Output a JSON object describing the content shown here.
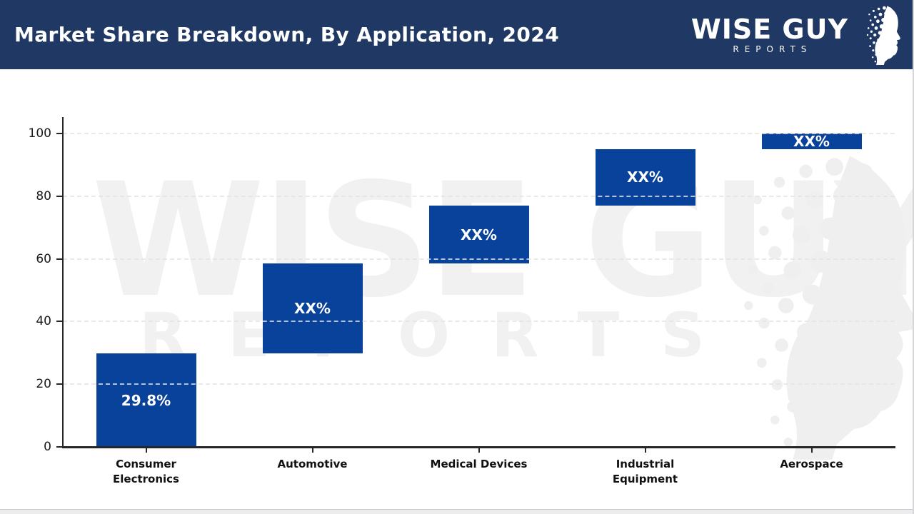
{
  "header": {
    "title": "Market Share Breakdown, By Application, 2024",
    "bg_color": "#1f3864",
    "logo": {
      "name": "WISE GUY",
      "tagline": "REPORTS"
    }
  },
  "watermark": {
    "name": "WISE GUY",
    "tagline": "REPORTS"
  },
  "chart_data": {
    "type": "bar",
    "subtype": "waterfall",
    "title": "Market Share Breakdown, By Application, 2024",
    "categories": [
      "Consumer Electronics",
      "Automotive",
      "Medical Devices",
      "Industrial Equipment",
      "Aerospace"
    ],
    "series": [
      {
        "name": "Market share (%)",
        "segments": [
          {
            "category": "Consumer Electronics",
            "start": 0,
            "end": 29.8,
            "label": "29.8%"
          },
          {
            "category": "Automotive",
            "start": 29.8,
            "end": 58.5,
            "label": "XX%"
          },
          {
            "category": "Medical Devices",
            "start": 58.5,
            "end": 77,
            "label": "XX%"
          },
          {
            "category": "Industrial Equipment",
            "start": 77,
            "end": 95,
            "label": "XX%"
          },
          {
            "category": "Aerospace",
            "start": 95,
            "end": 100,
            "label": "XX%"
          }
        ]
      }
    ],
    "cumulative_totals": [
      29.8,
      58.5,
      77,
      95,
      100
    ],
    "xlabel": "",
    "ylabel": "",
    "ylim": [
      0,
      100
    ],
    "yticks": [
      0,
      20,
      40,
      60,
      80,
      100
    ],
    "grid": {
      "horizontal": true,
      "style": "dashed",
      "drawn_above_bars": true
    },
    "legend": "none",
    "colors": {
      "bar": "#09429b",
      "bar_label": "#ffffff",
      "grid": "#e3e3e3",
      "axis": "#262626",
      "tick_label": "#1a1a1a",
      "header_bg": "#1f3864"
    }
  }
}
